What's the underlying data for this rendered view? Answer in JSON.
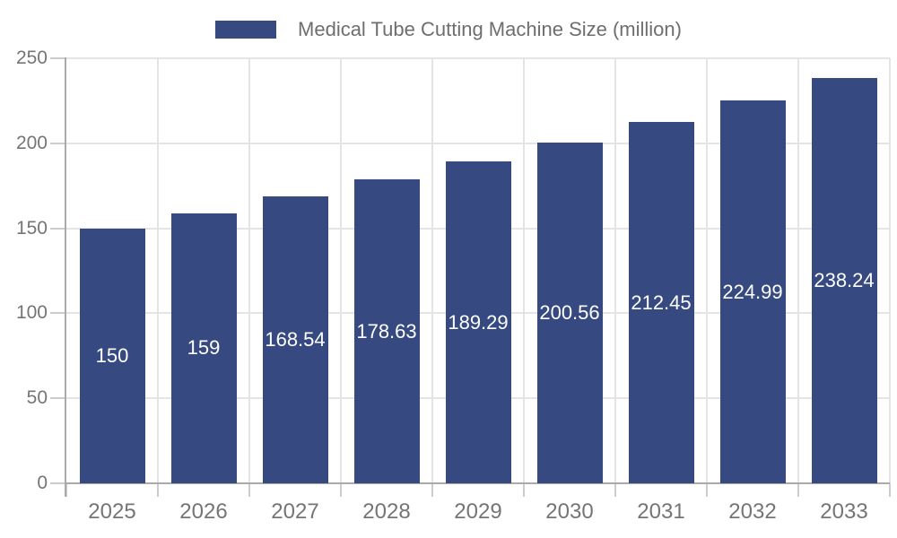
{
  "chart_data": {
    "type": "bar",
    "title": "Medical Tube Cutting Machine Size (million)",
    "legend": "Medical Tube Cutting Machine Size (million)",
    "legend_position": "top",
    "categories": [
      "2025",
      "2026",
      "2027",
      "2028",
      "2029",
      "2030",
      "2031",
      "2032",
      "2033"
    ],
    "values": [
      150,
      159,
      168.54,
      178.63,
      189.29,
      200.56,
      212.45,
      224.99,
      238.24
    ],
    "xlabel": "",
    "ylabel": "",
    "ylim": [
      0,
      250
    ],
    "yticks": [
      0,
      50,
      100,
      150,
      200,
      250
    ],
    "grid": true,
    "value_labels_inside_bars": true,
    "colors": {
      "bar": "#364a81",
      "grid": "#e4e4e4",
      "axis": "#aaaaaa",
      "tick": "#cccccc",
      "axis_label": "#757575",
      "value_label": "#ffffff",
      "legend_text": "#6e6e6e",
      "background": "#ffffff"
    }
  }
}
